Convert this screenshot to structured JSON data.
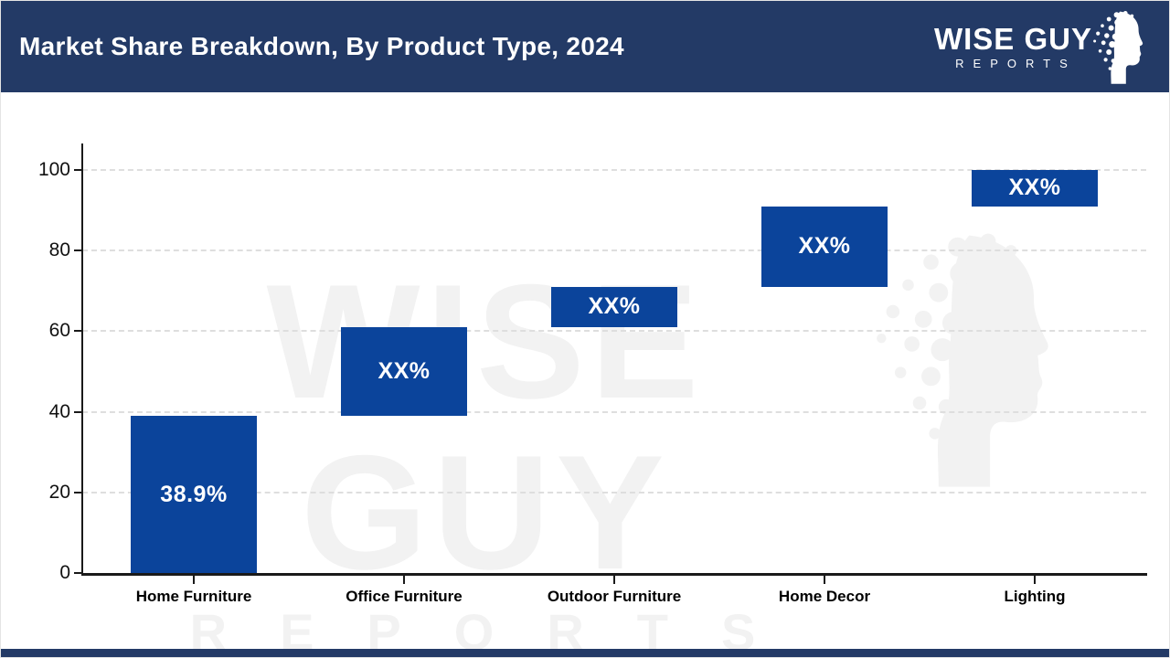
{
  "header": {
    "title": "Market Share Breakdown, By Product Type, 2024"
  },
  "logo": {
    "line1": "WISE GUY",
    "line2": "REPORTS"
  },
  "watermark": {
    "line1": "WISE GUY",
    "line2": "REPORTS"
  },
  "colors": {
    "header_bg": "#233A66",
    "footer_bg": "#233A66",
    "bar": "#0B449B",
    "bar_label": "#FFFFFF",
    "axis": "#1A1A1A",
    "grid": "#DEDEDE",
    "watermark": "#F2F2F2",
    "title_text": "#FFFFFF"
  },
  "chart_data": {
    "type": "bar",
    "subtype": "waterfall",
    "title": "Market Share Breakdown, By Product Type, 2024",
    "categories": [
      "Home Furniture",
      "Office Furniture",
      "Outdoor Furniture",
      "Home Decor",
      "Lighting"
    ],
    "segments": [
      {
        "category": "Home Furniture",
        "start": 0,
        "end": 38.9,
        "value": 38.9,
        "label": "38.9%"
      },
      {
        "category": "Office Furniture",
        "start": 38.9,
        "end": 61,
        "value": 22.1,
        "label": "XX%"
      },
      {
        "category": "Outdoor Furniture",
        "start": 61,
        "end": 71,
        "value": 10,
        "label": "XX%"
      },
      {
        "category": "Home Decor",
        "start": 71,
        "end": 91,
        "value": 20,
        "label": "XX%"
      },
      {
        "category": "Lighting",
        "start": 91,
        "end": 100,
        "value": 9,
        "label": "XX%"
      }
    ],
    "yticks": [
      0,
      20,
      40,
      60,
      80,
      100
    ],
    "ylim": [
      0,
      105
    ],
    "xlabel": "",
    "ylabel": "",
    "grid": "dashed-horizontal",
    "legend": "none"
  }
}
